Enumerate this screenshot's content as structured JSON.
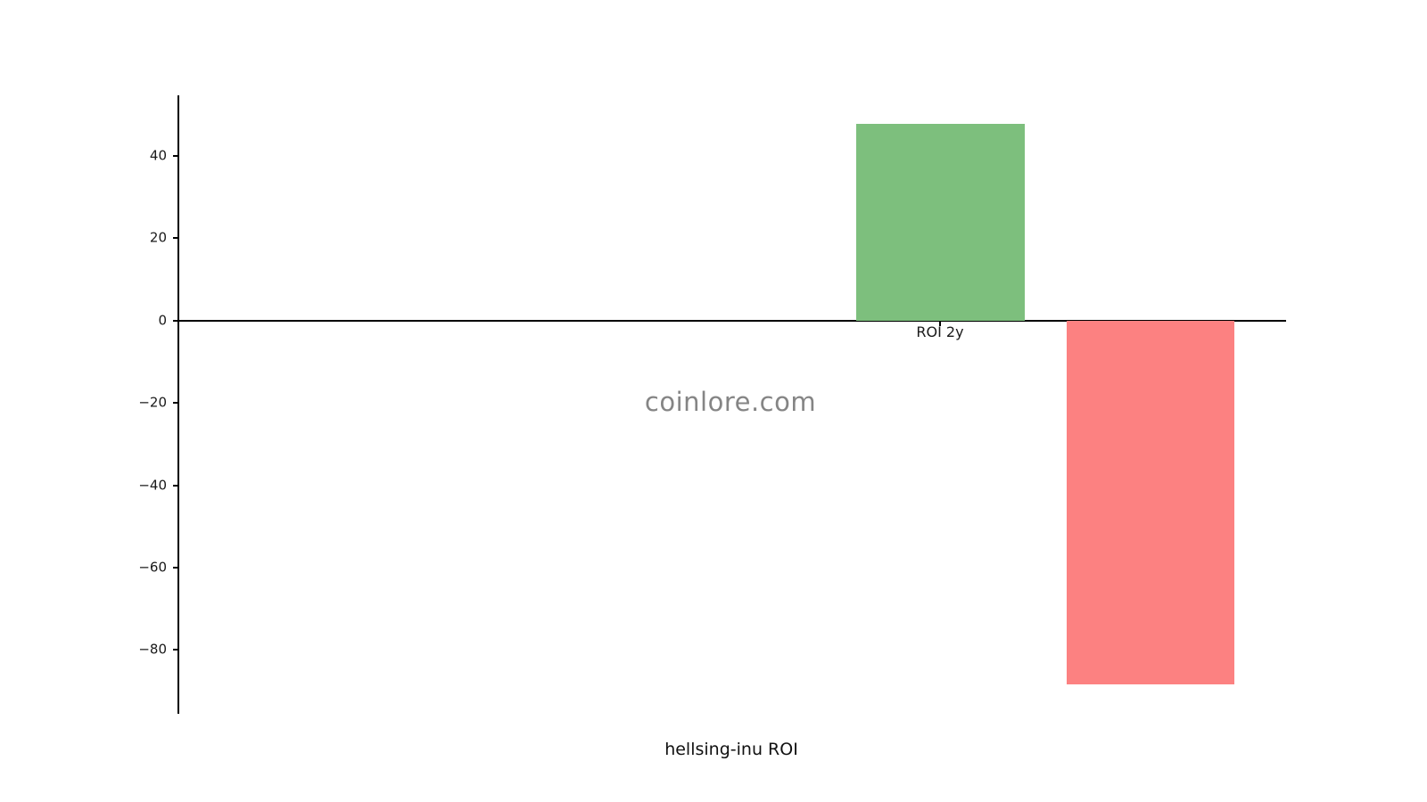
{
  "chart_data": {
    "type": "bar",
    "title": "",
    "xlabel": "hellsing-inu ROI",
    "ylabel": "",
    "categories": [
      "ROI 2y",
      ""
    ],
    "values": [
      47.7,
      -88.4
    ],
    "bar_colors": [
      "#7dbf7d",
      "#fc8181"
    ],
    "y_ticks": [
      40,
      20,
      0,
      -20,
      -40,
      -60,
      -80
    ],
    "ylim": [
      -95.5,
      54.7
    ],
    "grid": false,
    "legend": false,
    "watermark": "coinlore.com",
    "axis_color": "#000000",
    "tick_text_color": "#1a1a1a",
    "watermark_color": "#858585",
    "visible_x_tick_labels": [
      "ROI 2y"
    ]
  }
}
